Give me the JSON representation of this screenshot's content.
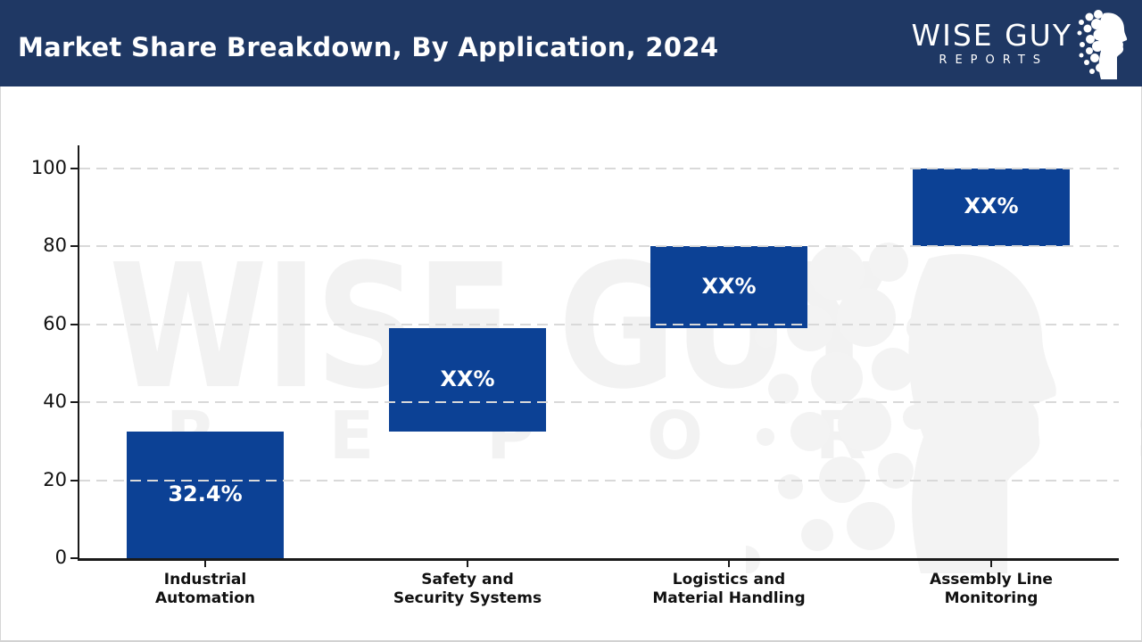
{
  "header": {
    "title": "Market Share Breakdown, By Application, 2024",
    "logo": {
      "line1": "WISE GUY",
      "line2": "REPORTS"
    }
  },
  "watermark": {
    "line1": "WISE GUY",
    "line2": "R E P O R T S"
  },
  "chart_data": {
    "type": "bar",
    "subtype": "waterfall",
    "title": "Market Share Breakdown, By Application, 2024",
    "categories": [
      "Industrial Automation",
      "Safety and Security Systems",
      "Logistics and Material Handling",
      "Assembly Line Monitoring"
    ],
    "category_label_lines": [
      [
        "Industrial",
        "Automation"
      ],
      [
        "Safety and",
        "Security Systems"
      ],
      [
        "Logistics and",
        "Material Handling"
      ],
      [
        "Assembly Line",
        "Monitoring"
      ]
    ],
    "segments": [
      {
        "start": 0,
        "end": 32.4,
        "label": "32.4%"
      },
      {
        "start": 32.4,
        "end": 59,
        "label": "XX%"
      },
      {
        "start": 59,
        "end": 80,
        "label": "XX%"
      },
      {
        "start": 80,
        "end": 100,
        "label": "XX%"
      }
    ],
    "values": [
      32.4,
      26.6,
      21,
      20
    ],
    "yticks": [
      0,
      20,
      40,
      60,
      80,
      100
    ],
    "ylim": [
      0,
      106
    ],
    "xlabel": "",
    "ylabel": "",
    "grid": "horizontal-dashed",
    "legend": "none"
  },
  "colors": {
    "header_bg": "#1f3864",
    "bar": "#0c4195",
    "grid": "#d9d9d9",
    "axis": "#1a1a1a",
    "watermark": "#f2f2f2"
  }
}
